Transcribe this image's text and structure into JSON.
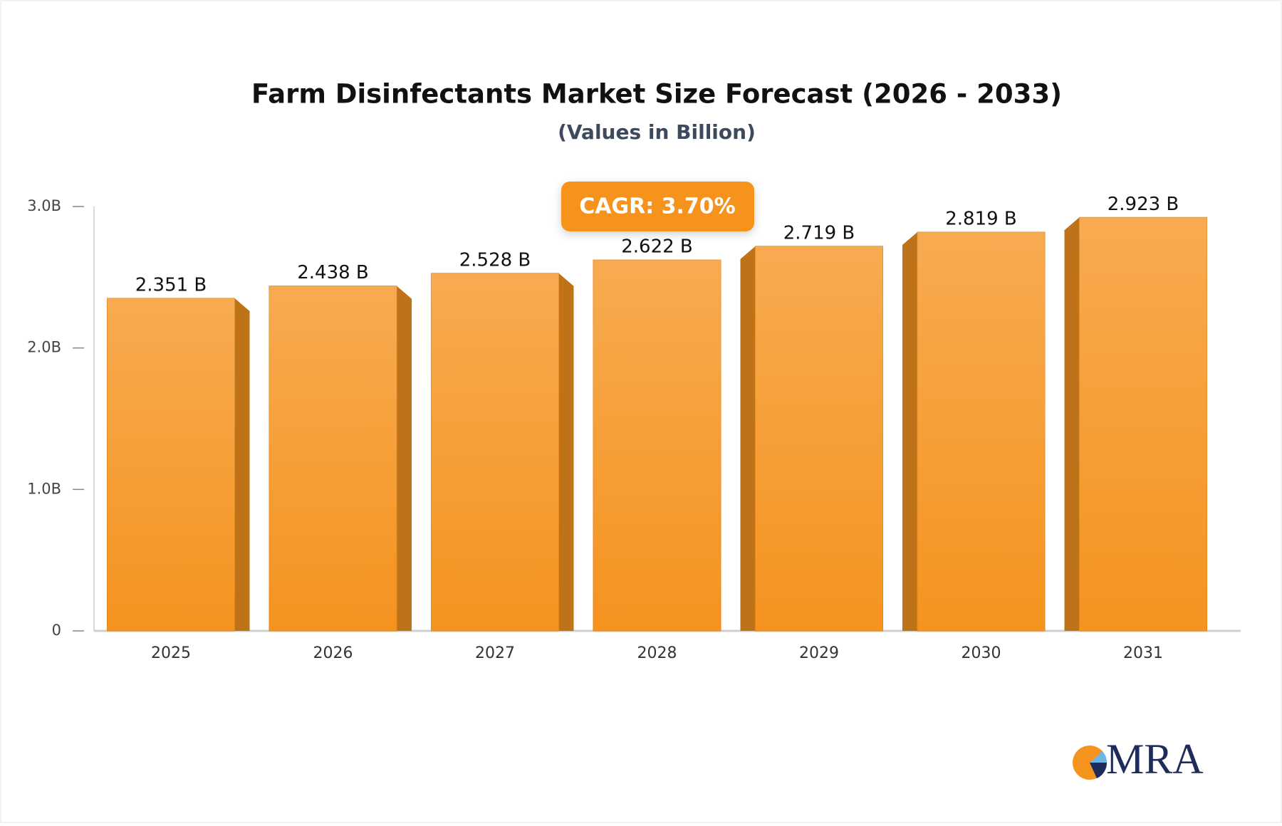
{
  "chart_data": {
    "type": "bar",
    "title": "Farm Disinfectants Market Size Forecast (2026 - 2033)",
    "subtitle": "(Values in Billion)",
    "annotation": "CAGR: 3.70%",
    "logo": "MRA",
    "categories": [
      "2025",
      "2026",
      "2027",
      "2028",
      "2029",
      "2030",
      "2031"
    ],
    "values": [
      2.351,
      2.438,
      2.528,
      2.622,
      2.719,
      2.819,
      2.923
    ],
    "value_labels": [
      "2.351 B",
      "2.438 B",
      "2.528 B",
      "2.622 B",
      "2.719 B",
      "2.819 B",
      "2.923 B"
    ],
    "color": "#f5931f",
    "ylim": [
      0,
      3
    ],
    "yticks": [
      0,
      {
        "value": 1,
        "label": "1.0B"
      },
      {
        "value": 2,
        "label": "2.0B"
      },
      {
        "value": 3,
        "label": "3.0B"
      }
    ],
    "grid": false
  }
}
